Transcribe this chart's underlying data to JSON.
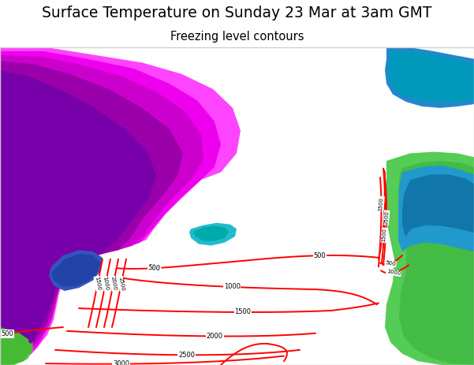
{
  "title": "Surface Temperature on Sunday 23 Mar at 3am GMT",
  "subtitle": "Freezing level contours",
  "title_fontsize": 13.5,
  "subtitle_fontsize": 10.5,
  "header_bg": "#ffffff",
  "ocean_color": "#ccd9f0",
  "contour_color": "#ff0000",
  "fig_width": 6.01,
  "fig_height": 4.63,
  "dpi": 100,
  "border_color": "#cccccc"
}
